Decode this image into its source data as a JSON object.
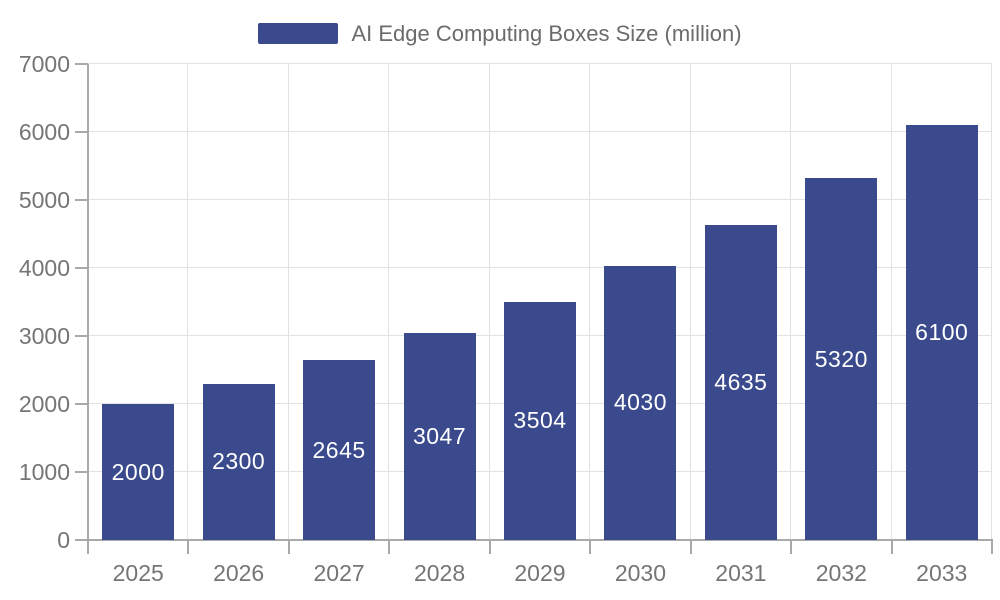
{
  "chart_data": {
    "type": "bar",
    "title": "",
    "legend": {
      "label": "AI Edge Computing Boxes Size (million)",
      "position": "top"
    },
    "categories": [
      "2025",
      "2026",
      "2027",
      "2028",
      "2029",
      "2030",
      "2031",
      "2032",
      "2033"
    ],
    "series": [
      {
        "name": "AI Edge Computing Boxes Size (million)",
        "values": [
          2000,
          2300,
          2645,
          3047,
          3504,
          4030,
          4635,
          5320,
          6100
        ]
      }
    ],
    "xlabel": "",
    "ylabel": "",
    "ylim": [
      0,
      7000
    ],
    "yticks": [
      0,
      1000,
      2000,
      3000,
      4000,
      5000,
      6000,
      7000
    ],
    "grid": "horizontal-and-vertical",
    "bar_value_labels_visible": true
  },
  "colors": {
    "bar": "#3a4a8c",
    "bar_value_text": "#ffffff",
    "legend_text": "#6b6b6b",
    "axis_label_text": "#757575",
    "gridline": "#e2e2e2",
    "axis_line": "#a9a9a9",
    "tick": "#a9a9a9",
    "background": "#ffffff"
  }
}
